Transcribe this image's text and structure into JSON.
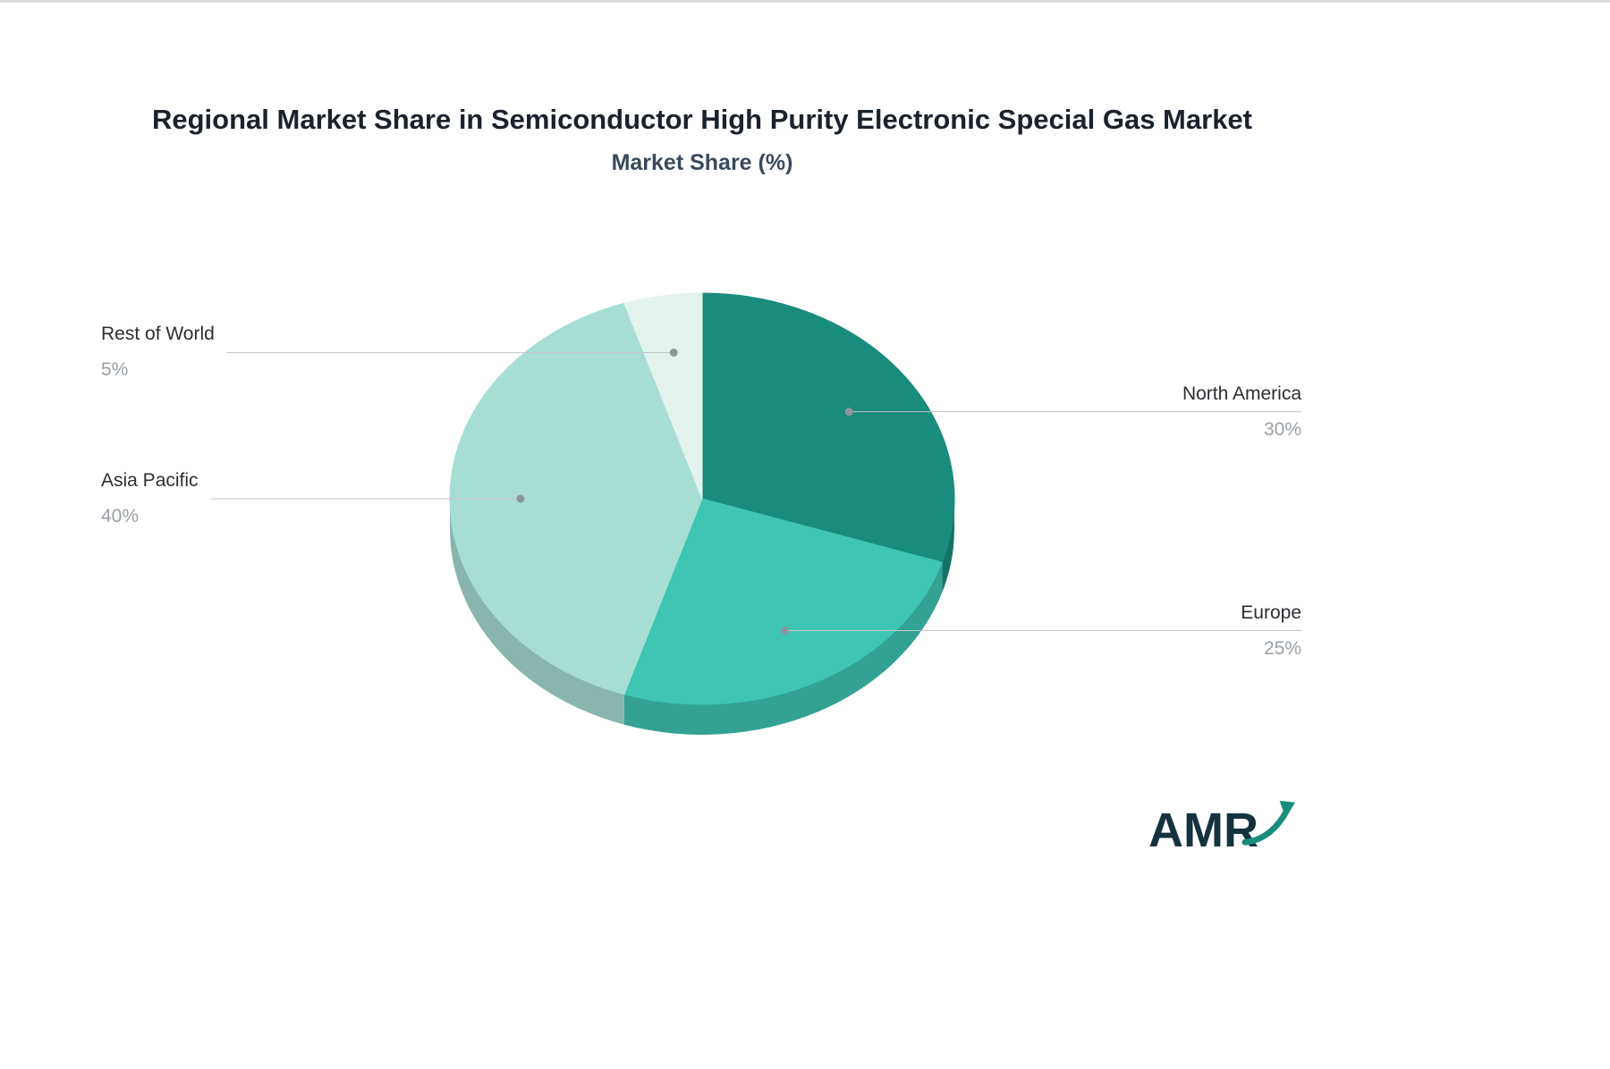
{
  "page": {
    "title": "Regional Market Share in Semiconductor High Purity Electronic Special Gas Market",
    "subtitle": "Market Share (%)"
  },
  "logo": {
    "text": "AMR",
    "arrow_color": "#1a8c7c",
    "text_color": "#14333f"
  },
  "chart_data": {
    "type": "pie",
    "title": "Regional Market Share in Semiconductor High Purity Electronic Special Gas Market",
    "subtitle": "Market Share (%)",
    "labels": [
      "North America",
      "Europe",
      "Asia Pacific",
      "Rest of World"
    ],
    "values": [
      30,
      25,
      40,
      5
    ],
    "value_labels": [
      "30%",
      "25%",
      "40%",
      "5%"
    ],
    "colors": [
      "#1a8c7c",
      "#3ec6b3",
      "#a6ded4",
      "#e4f2ee"
    ],
    "label_sides": [
      "right",
      "right",
      "left",
      "left"
    ],
    "start_angle_deg": 0,
    "direction": "clockwise",
    "style": "3d",
    "legend_position": "none",
    "label_name_color": "#2b2f33",
    "label_value_color": "#9aa0a5",
    "leader_line_color": "#c4c7ca",
    "dot_color": "#8f969b"
  }
}
